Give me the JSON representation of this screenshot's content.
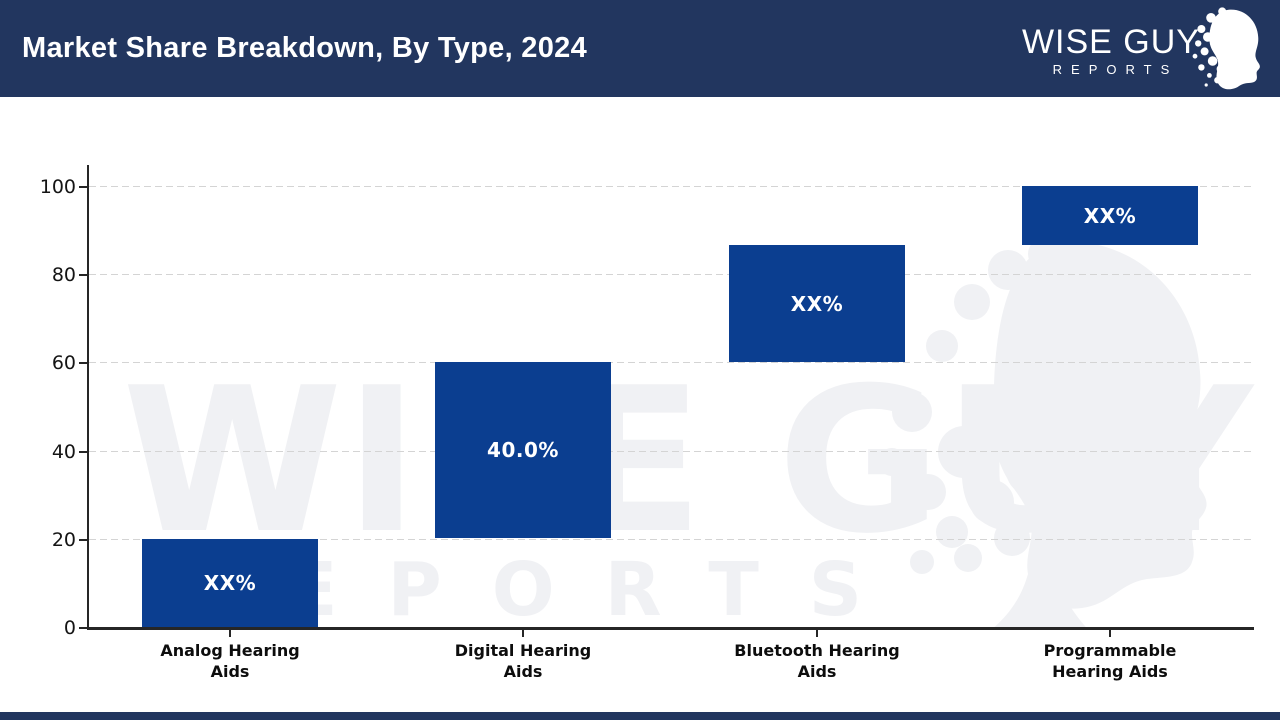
{
  "header": {
    "title": "Market Share Breakdown, By Type, 2024",
    "logo": {
      "wordmark": "WISE GUY",
      "subtext": "REPORTS"
    }
  },
  "watermark": {
    "wordmark": "WISE GUY",
    "subtext": "REPORTS"
  },
  "colors": {
    "header_navy": "#22365f",
    "footer_navy": "#22365f",
    "bar_blue": "#0b3e90",
    "watermark_gray": "#f0f1f4",
    "gridline_gray": "#d4d4d4",
    "axis_dark": "#262626"
  },
  "chart_data": {
    "type": "bar",
    "subtype": "waterfall",
    "title": "Market Share Breakdown, By Type, 2024",
    "categories": [
      "Analog Hearing Aids",
      "Digital Hearing Aids",
      "Bluetooth Hearing Aids",
      "Programmable Hearing Aids"
    ],
    "category_label_lines": [
      [
        "Analog Hearing",
        "Aids"
      ],
      [
        "Digital Hearing",
        "Aids"
      ],
      [
        "Bluetooth Hearing",
        "Aids"
      ],
      [
        "Programmable",
        "Hearing Aids"
      ]
    ],
    "segments": [
      {
        "category": "Analog Hearing Aids",
        "start": 0,
        "end": 20,
        "label": "XX%"
      },
      {
        "category": "Digital Hearing Aids",
        "start": 20,
        "end": 60,
        "label": "40.0%"
      },
      {
        "category": "Bluetooth Hearing Aids",
        "start": 60,
        "end": 86.6,
        "label": "XX%"
      },
      {
        "category": "Programmable Hearing Aids",
        "start": 86.6,
        "end": 100,
        "label": "XX%"
      }
    ],
    "ylim": [
      0,
      100
    ],
    "yticks": [
      0,
      20,
      40,
      60,
      80,
      100
    ],
    "grid": {
      "horizontal": true,
      "style": "dashed"
    },
    "legend": "none",
    "bar_color": "#0b3e90",
    "bar_label_color": "#ffffff"
  }
}
